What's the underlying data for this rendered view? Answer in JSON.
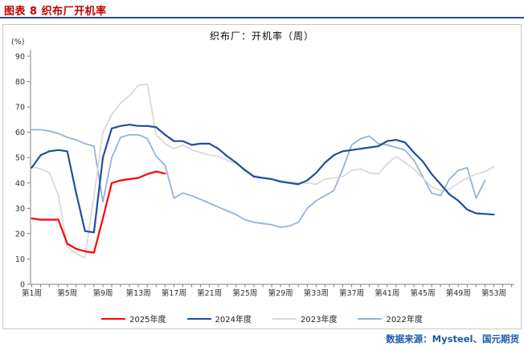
{
  "header": {
    "title": "图表 8 织布厂开机率"
  },
  "footer": {
    "source_label": "数据来源：Mysteel、国元期货"
  },
  "colors": {
    "title_red": "#C00000",
    "rule_navy": "#27508F",
    "source_blue": "#1A5CA8",
    "axis_gray": "#808080"
  },
  "chart_data": {
    "type": "line",
    "title": "织布厂：开机率（周）",
    "ylabel": "(%)",
    "ylim": [
      0,
      90
    ],
    "ytick_labels": [
      0,
      10,
      20,
      30,
      40,
      50,
      60,
      70,
      80,
      90
    ],
    "x_unit": "week",
    "weeks_total": 53,
    "xticks": [
      {
        "week": 1,
        "label": "第1周"
      },
      {
        "week": 5,
        "label": "第5周"
      },
      {
        "week": 9,
        "label": "第9周"
      },
      {
        "week": 13,
        "label": "第13周"
      },
      {
        "week": 17,
        "label": "第17周"
      },
      {
        "week": 21,
        "label": "第21周"
      },
      {
        "week": 25,
        "label": "第25周"
      },
      {
        "week": 29,
        "label": "第29周"
      },
      {
        "week": 33,
        "label": "第33周"
      },
      {
        "week": 37,
        "label": "第37周"
      },
      {
        "week": 41,
        "label": "第41周"
      },
      {
        "week": 45,
        "label": "第45周"
      },
      {
        "week": 49,
        "label": "第49周"
      },
      {
        "week": 53,
        "label": "第53周"
      }
    ],
    "legend_position": "bottom",
    "grid": false,
    "series": [
      {
        "name": "2025年度",
        "color": "#FF0000",
        "width": 2.2,
        "start_week": 1,
        "values": [
          26,
          25.5,
          25.5,
          25.5,
          16,
          14,
          13,
          12.5,
          26,
          40,
          41,
          41.5,
          42,
          43.5,
          44.5,
          43.7
        ]
      },
      {
        "name": "2024年度",
        "color": "#1F4E9F",
        "width": 2.2,
        "start_week": 1,
        "values": [
          46,
          51,
          52.5,
          53,
          52.5,
          36,
          21,
          20.5,
          50,
          61.5,
          62.5,
          63,
          62.5,
          62.5,
          62,
          59,
          56.5,
          56.5,
          55,
          55.5,
          55.5,
          53.5,
          50.5,
          48,
          45,
          42.5,
          42,
          41.5,
          40.5,
          40,
          39.5,
          41,
          44,
          48,
          51,
          52.5,
          53,
          53.5,
          54,
          54.5,
          56.5,
          57,
          56,
          52,
          48.5,
          43.5,
          39.5,
          35.5,
          33,
          29.5,
          28,
          27.8,
          27.5
        ]
      },
      {
        "name": "2023年度",
        "color": "#D9D9D9",
        "width": 1.8,
        "start_week": 1,
        "values": [
          46.5,
          45.5,
          44,
          35,
          15,
          12,
          10.5,
          35,
          60,
          67,
          71.5,
          74.5,
          78.5,
          79,
          59,
          55.5,
          53.5,
          55,
          53,
          52,
          51,
          50.5,
          49,
          47.5,
          45.5,
          43,
          42,
          41.5,
          41,
          40.5,
          40,
          40,
          39.5,
          41.5,
          42,
          42.5,
          45,
          45.5,
          44,
          43.5,
          47.5,
          50.5,
          48,
          45.5,
          42,
          38.5,
          37,
          37.5,
          40,
          42,
          43.5,
          44.5,
          46.5
        ]
      },
      {
        "name": "2022年度",
        "color": "#95B3D7",
        "width": 1.8,
        "start_week": 1,
        "values": [
          61,
          61,
          60.5,
          59.5,
          58,
          57,
          55.5,
          54.5,
          32.5,
          50,
          58,
          59,
          59,
          57.5,
          50.5,
          47,
          34,
          36,
          35,
          33.5,
          32,
          30.5,
          29,
          27.5,
          25.5,
          24.5,
          24,
          23.5,
          22.5,
          23,
          24.5,
          30,
          33,
          35,
          37,
          45.5,
          55,
          57.5,
          58.5,
          55.5,
          55,
          54,
          53,
          49,
          42.5,
          36,
          35,
          41.5,
          45,
          46,
          34,
          41
        ]
      }
    ]
  }
}
